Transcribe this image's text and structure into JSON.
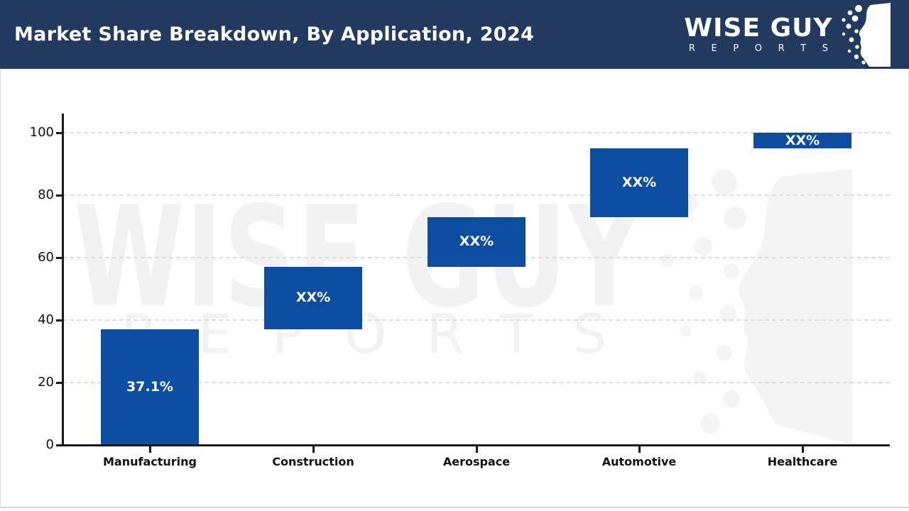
{
  "header": {
    "title": "Market Share Breakdown, By Application, 2024",
    "logo": {
      "name": "WISE GUY",
      "sub": "REPORTS"
    }
  },
  "watermark": {
    "name": "WISE GUY",
    "sub": "REPORTS"
  },
  "colors": {
    "header_bg": "#233A60",
    "bar": "#0C4DA2",
    "bar_label": "#FFFFFF",
    "axis": "#1A1A1A",
    "grid": "#DCDCDC",
    "tick_label": "#111111",
    "footer_line": "#D9D9D9",
    "watermark": "#F2F2F2"
  },
  "chart_data": {
    "type": "bar",
    "subtype": "waterfall",
    "title": "Market Share Breakdown, By Application, 2024",
    "categories": [
      "Manufacturing",
      "Construction",
      "Aerospace",
      "Automotive",
      "Healthcare"
    ],
    "segments": [
      {
        "category": "Manufacturing",
        "start": 0,
        "end": 37.1,
        "label": "37.1%"
      },
      {
        "category": "Construction",
        "start": 37.1,
        "end": 57,
        "label": "XX%"
      },
      {
        "category": "Aerospace",
        "start": 57,
        "end": 73,
        "label": "XX%"
      },
      {
        "category": "Automotive",
        "start": 73,
        "end": 95,
        "label": "XX%"
      },
      {
        "category": "Healthcare",
        "start": 95,
        "end": 100,
        "label": "XX%"
      }
    ],
    "yticks": [
      0,
      20,
      40,
      60,
      80,
      100
    ],
    "ylim": [
      0,
      106
    ],
    "xlabel": "",
    "ylabel": "",
    "grid": "horizontal-dashed",
    "legend": "none"
  }
}
